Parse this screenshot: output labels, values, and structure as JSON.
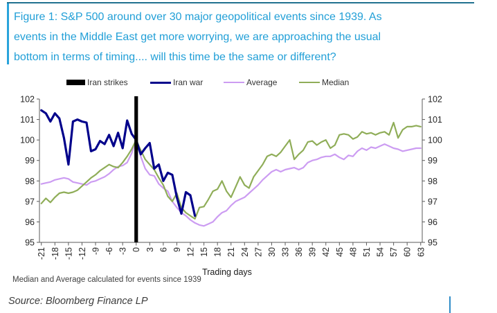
{
  "title_lines": [
    "Figure 1: S&P 500 around over 30 major geopolitical events since 1939. As",
    "events in the Middle East get more worrying, we are approaching the usual",
    "bottom in terms of timing.... will this time be the same or different?"
  ],
  "footnote": "Median and Average calculated for events since 1939",
  "source": "Source: Bloomberg Finance LP",
  "colors": {
    "title": "#219fd7",
    "title_accent": "#29a3db",
    "top_rule": "#20718f",
    "axis": "#595959",
    "tick_label": "#262626",
    "corner_mark": "#2f8cc8",
    "footnote": "#404040",
    "source": "#3b3b3b"
  },
  "chart_data": {
    "type": "line",
    "xlabel": "Trading days",
    "ylabel": "",
    "xlim": [
      -21,
      63
    ],
    "ylim": [
      95,
      102
    ],
    "grid": false,
    "legend_position": "top",
    "x_ticks": [
      -21,
      -18,
      -15,
      -12,
      -9,
      -6,
      -3,
      0,
      3,
      6,
      9,
      12,
      15,
      18,
      21,
      24,
      27,
      30,
      33,
      36,
      39,
      42,
      45,
      48,
      51,
      54,
      57,
      60,
      63
    ],
    "y_ticks": [
      95,
      96,
      97,
      98,
      99,
      100,
      101,
      102
    ],
    "event_bar": {
      "label": "Iran strikes",
      "x": 0,
      "color": "#000000"
    },
    "legend": [
      {
        "label": "Iran strikes",
        "swatch": "bar",
        "color": "#000000"
      },
      {
        "label": "Iran war",
        "swatch": "line",
        "color": "#00008b"
      },
      {
        "label": "Average",
        "swatch": "line",
        "color": "#cc9cf2"
      },
      {
        "label": "Median",
        "swatch": "line",
        "color": "#8fad58"
      }
    ],
    "series": [
      {
        "name": "Average",
        "color": "#cc9cf2",
        "width": 2.2,
        "x_start": -21,
        "values": [
          97.85,
          97.9,
          97.95,
          98.05,
          98.1,
          98.15,
          98.1,
          97.95,
          97.9,
          97.85,
          97.8,
          97.95,
          98.0,
          98.1,
          98.2,
          98.35,
          98.55,
          98.7,
          98.75,
          98.9,
          99.35,
          100.0,
          99.2,
          98.6,
          98.3,
          98.25,
          97.85,
          97.65,
          97.5,
          97.0,
          96.7,
          96.45,
          96.3,
          96.1,
          95.95,
          95.85,
          95.8,
          95.9,
          96.0,
          96.25,
          96.45,
          96.55,
          96.8,
          97.0,
          97.1,
          97.2,
          97.4,
          97.6,
          97.8,
          98.05,
          98.25,
          98.45,
          98.55,
          98.45,
          98.55,
          98.6,
          98.65,
          98.55,
          98.65,
          98.9,
          99.0,
          99.05,
          99.15,
          99.2,
          99.2,
          99.3,
          99.15,
          99.05,
          99.25,
          99.2,
          99.45,
          99.6,
          99.5,
          99.65,
          99.6,
          99.7,
          99.8,
          99.7,
          99.6,
          99.55,
          99.45,
          99.5,
          99.55,
          99.6,
          99.6
        ]
      },
      {
        "name": "Median",
        "color": "#8fad58",
        "width": 2.2,
        "x_start": -21,
        "values": [
          96.9,
          97.15,
          96.95,
          97.2,
          97.4,
          97.45,
          97.4,
          97.45,
          97.55,
          97.75,
          97.95,
          98.15,
          98.3,
          98.5,
          98.65,
          98.8,
          98.7,
          98.65,
          98.9,
          99.2,
          99.55,
          100.0,
          99.5,
          99.05,
          98.8,
          98.55,
          98.15,
          97.8,
          97.25,
          97.0,
          97.4,
          96.7,
          96.45,
          96.3,
          96.15,
          96.7,
          96.75,
          97.1,
          97.5,
          97.6,
          98.0,
          97.5,
          97.2,
          97.7,
          98.2,
          97.8,
          97.65,
          98.2,
          98.5,
          98.8,
          99.2,
          99.3,
          99.2,
          99.4,
          99.7,
          100.0,
          99.05,
          99.3,
          99.5,
          99.9,
          99.95,
          99.75,
          99.9,
          100.0,
          99.6,
          99.75,
          100.25,
          100.3,
          100.25,
          100.05,
          100.15,
          100.4,
          100.3,
          100.35,
          100.25,
          100.35,
          100.4,
          100.25,
          100.85,
          100.1,
          100.5,
          100.65,
          100.65,
          100.7,
          100.65
        ]
      },
      {
        "name": "Iran war",
        "color": "#00008b",
        "width": 3.2,
        "x_start": -21,
        "values": [
          101.45,
          101.3,
          100.9,
          101.3,
          101.05,
          100.1,
          98.8,
          100.9,
          101.0,
          100.9,
          100.85,
          99.45,
          99.55,
          99.95,
          99.8,
          100.25,
          99.7,
          100.35,
          99.6,
          100.95,
          100.3,
          100.0,
          99.3,
          99.6,
          99.85,
          98.6,
          98.8,
          98.0,
          98.4,
          98.3,
          97.2,
          96.4,
          97.45,
          97.3,
          96.3
        ]
      }
    ]
  }
}
